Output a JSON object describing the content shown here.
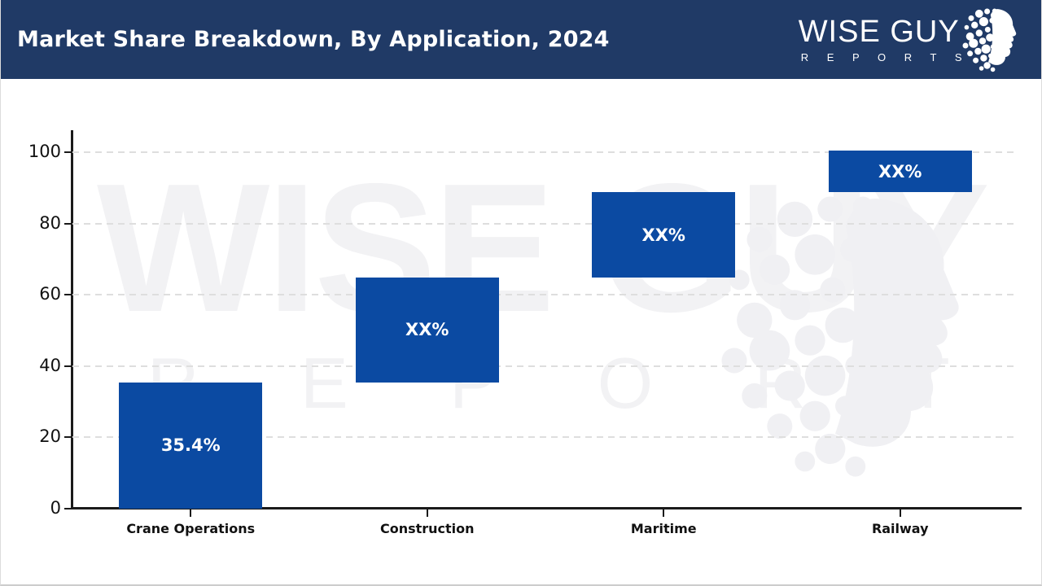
{
  "header": {
    "title": "Market Share Breakdown, By Application, 2024",
    "logo": {
      "line1": "WISE GUY",
      "line2": "R E P O R T S"
    }
  },
  "watermark": {
    "line1": "WISE GUY",
    "line2": "R E P O R T S"
  },
  "chart_data": {
    "type": "bar",
    "variant": "floating-segment-waterfall",
    "title": "Market Share Breakdown, By Application, 2024",
    "xlabel": "",
    "ylabel": "",
    "categories": [
      "Crane Operations",
      "Construction",
      "Maritime",
      "Railway"
    ],
    "segments": [
      {
        "category": "Crane Operations",
        "start": 0,
        "end": 35.4,
        "label": "35.4%"
      },
      {
        "category": "Construction",
        "start": 35.4,
        "end": 64.9,
        "label": "XX%"
      },
      {
        "category": "Maritime",
        "start": 64.9,
        "end": 88.7,
        "label": "XX%"
      },
      {
        "category": "Railway",
        "start": 88.7,
        "end": 100.5,
        "label": "XX%"
      }
    ],
    "ylim": [
      0,
      100
    ],
    "yticks": [
      0,
      20,
      40,
      60,
      80,
      100
    ],
    "grid": "horizontal-dashed",
    "legend": "none",
    "colors": {
      "bar": "#0B4AA2",
      "header_bg": "#203A66",
      "grid": "#DEDEDE",
      "axis": "#1A1A1A",
      "bar_label_text": "#FFFFFF",
      "watermark": "#F2F2F4"
    }
  }
}
